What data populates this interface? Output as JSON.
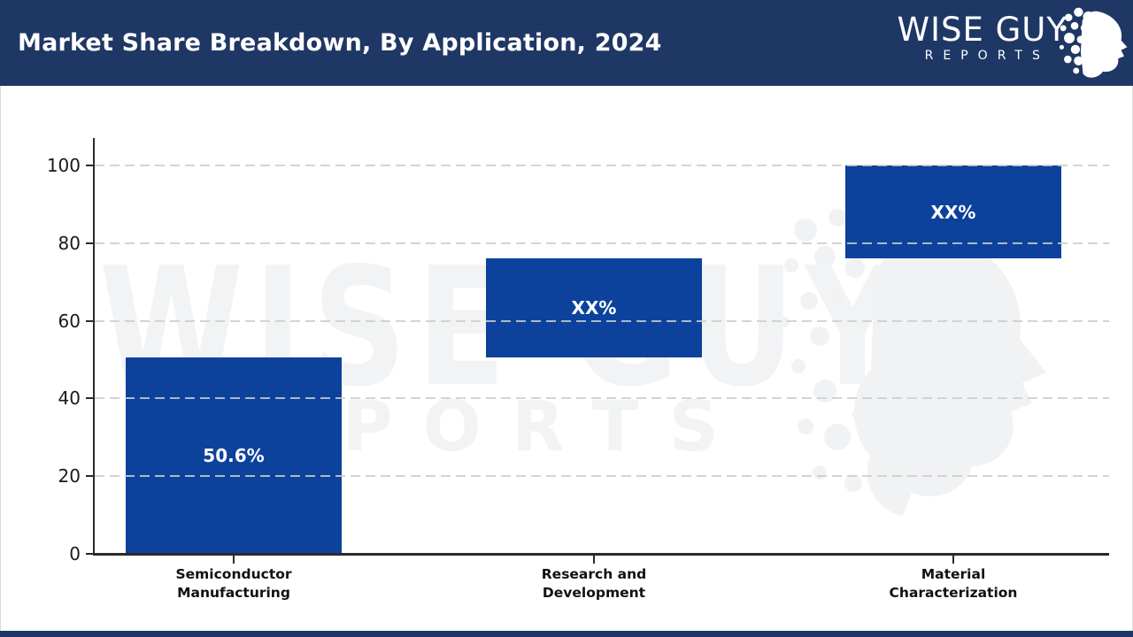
{
  "header": {
    "title": "Market Share Breakdown, By Application, 2024",
    "logo": {
      "line1": "WISE GUY",
      "line2": "REPORTS"
    }
  },
  "watermark": {
    "line1": "WISE GUY",
    "line2": "REPORTS"
  },
  "colors": {
    "header_bg": "#1f3765",
    "footer_bg": "#1f3765",
    "bar_fill": "#0c429c",
    "gridline": "#d3d3d3",
    "axis": "#2a2a2a",
    "tick_label": "#1a1a1a",
    "bar_label": "#ffffff",
    "watermark": "#f2f3f5"
  },
  "chart_data": {
    "type": "bar",
    "subtype": "floating-segment (stacked waterfall of market share)",
    "title": "Market Share Breakdown, By Application, 2024",
    "xlabel": "",
    "ylabel": "",
    "ylim": [
      0,
      100
    ],
    "yticks": [
      0,
      20,
      40,
      60,
      80,
      100
    ],
    "grid": "horizontal dashed",
    "legend": "none",
    "bar_color": "#0c429c",
    "categories": [
      "Semiconductor Manufacturing",
      "Research and Development",
      "Material Characterization"
    ],
    "category_lines": [
      [
        "Semiconductor",
        "Manufacturing"
      ],
      [
        "Research and",
        "Development"
      ],
      [
        "Material",
        "Characterization"
      ]
    ],
    "bars": [
      {
        "category": "Semiconductor Manufacturing",
        "label": "50.6%",
        "start": 0,
        "end": 50.6,
        "value_shown": "50.6%"
      },
      {
        "category": "Research and Development",
        "label": "XX%",
        "start": 50.6,
        "end": 76,
        "value_shown": "XX%"
      },
      {
        "category": "Material Characterization",
        "label": "XX%",
        "start": 76,
        "end": 100,
        "value_shown": "XX%"
      }
    ]
  }
}
